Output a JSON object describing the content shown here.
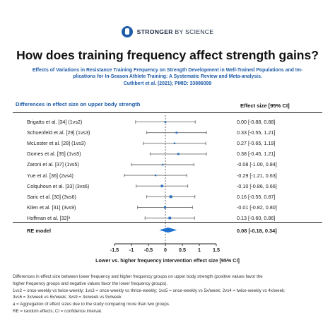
{
  "brand": {
    "logo_icon": "stronger-by-science-logo-icon",
    "name_bold": "STRONGER",
    "name_light": " BY SCIENCE"
  },
  "title": "How does training frequency affect strength gains?",
  "subtitle": {
    "line1": "Effects of Variations in Resistance Training Frequency on Strength Development in Well-Trained Populations and Im-",
    "line2": "plications for In-Season Athlete Training: A Systematic Review and Meta-analysis.",
    "line3": "Cuthbert et al. (2021); PMID: 33886099"
  },
  "panel": {
    "heading": "Differences in effect size on upper body strength",
    "effect_heading": "Effect size [95% CI]",
    "re_label": "RE model",
    "re_value": "0.08 [-0.18, 0.34]"
  },
  "studies": [
    {
      "label": "Brigatto et al. [34] (1vs2)",
      "value": "0.00 [-0.88, 0.88]"
    },
    {
      "label": "Schoenfeld et al. [29] (1vs3)",
      "value": "0.33 [-0.55, 1.21]"
    },
    {
      "label": "McLester et al. [28] (1vs3)",
      "value": "0.27 [-0.65, 1.19]"
    },
    {
      "label": "Gomes et al. [35] (1vs5)",
      "value": "0.38 [-0.45, 1.21]"
    },
    {
      "label": "Zaroni et al. [37] (1vs5)",
      "value": "-0.08 [-1.00, 0.84]"
    },
    {
      "label": "Yue et al. [36] (2vs4)",
      "value": "-0.29 [-1.21, 0.63]"
    },
    {
      "label": "Colquhoun et al. [33] (3vs6)",
      "value": "-0.10 [-0.86, 0.66]"
    },
    {
      "label": "Saric et al. [30] (3vs6)",
      "value": "0.16 [-0.55, 0.87]"
    },
    {
      "label": "Kilen et al. [31] (3vs9)",
      "value": "-0.01 [-0.82, 0.80]"
    },
    {
      "label": "Hoffman et al. [32]ᵃ",
      "value": "0.13 [-0.60, 0.86]"
    }
  ],
  "xlabel": "Lower vs. higher frequency intervention effect size [95% CI]",
  "footnotes": {
    "line1": "Differences in effect size between lower frequency and higher frequency groups on upper body strength (positive values favor the",
    "line2": "higher frequency groups and negative values favor the lower frequency groups).",
    "line3": "1vs2 = once-weekly vs twice-weekly; 1vs3 = once-weekly vs thrice-weekly; 1vs5 = once-weekly vs 5x/week; 2vs4 = twice-weekly vs 4x/week;",
    "line4": "3vs6 = 3x/week vs 6x/week; 3vs9 = 3x/week vs 9x/week",
    "line5": "a = Aggregation of effect sizes due to the study comparing more than two groups.",
    "line6": "RE = random effects; CI = confidence interval."
  },
  "colors": {
    "accent": "#1e5ca8",
    "marker": "#2a72c0",
    "diamond": "#1e6fd0",
    "ci_line": "#6b6b6b"
  },
  "chart_data": {
    "type": "forest",
    "title": "Differences in effect size on upper body strength",
    "xlabel": "Lower vs. higher frequency intervention effect size [95% CI]",
    "xlim": [
      -1.5,
      1.5
    ],
    "xticks": [
      "-1.5",
      "-1",
      "-0.5",
      "0",
      "0.5",
      "1",
      "1.5"
    ],
    "xtick_values": [
      -1.5,
      -1,
      -0.5,
      0,
      0.5,
      1,
      1.5
    ],
    "studies": [
      {
        "name": "Brigatto et al. [34] (1vs2)",
        "estimate": 0.0,
        "lower": -0.88,
        "upper": 0.88,
        "weight": 1.0
      },
      {
        "name": "Schoenfeld et al. [29] (1vs3)",
        "estimate": 0.33,
        "lower": -0.55,
        "upper": 1.21,
        "weight": 1.0
      },
      {
        "name": "McLester et al. [28] (1vs3)",
        "estimate": 0.27,
        "lower": -0.65,
        "upper": 1.19,
        "weight": 0.9
      },
      {
        "name": "Gomes et al. [35] (1vs5)",
        "estimate": 0.38,
        "lower": -0.45,
        "upper": 1.21,
        "weight": 1.1
      },
      {
        "name": "Zaroni et al. [37] (1vs5)",
        "estimate": -0.08,
        "lower": -1.0,
        "upper": 0.84,
        "weight": 0.9
      },
      {
        "name": "Yue et al. [36] (2vs4)",
        "estimate": -0.29,
        "lower": -1.21,
        "upper": 0.63,
        "weight": 0.9
      },
      {
        "name": "Colquhoun et al. [33] (3vs6)",
        "estimate": -0.1,
        "lower": -0.86,
        "upper": 0.66,
        "weight": 1.3
      },
      {
        "name": "Saric et al. [30] (3vs6)",
        "estimate": 0.16,
        "lower": -0.55,
        "upper": 0.87,
        "weight": 1.5
      },
      {
        "name": "Kilen et al. [31] (3vs9)",
        "estimate": -0.01,
        "lower": -0.82,
        "upper": 0.8,
        "weight": 1.2
      },
      {
        "name": "Hoffman et al. [32]ᵃ",
        "estimate": 0.13,
        "lower": -0.6,
        "upper": 0.86,
        "weight": 1.4
      }
    ],
    "summary": {
      "name": "RE model",
      "estimate": 0.08,
      "lower": -0.18,
      "upper": 0.34
    },
    "reference_line": 0
  }
}
